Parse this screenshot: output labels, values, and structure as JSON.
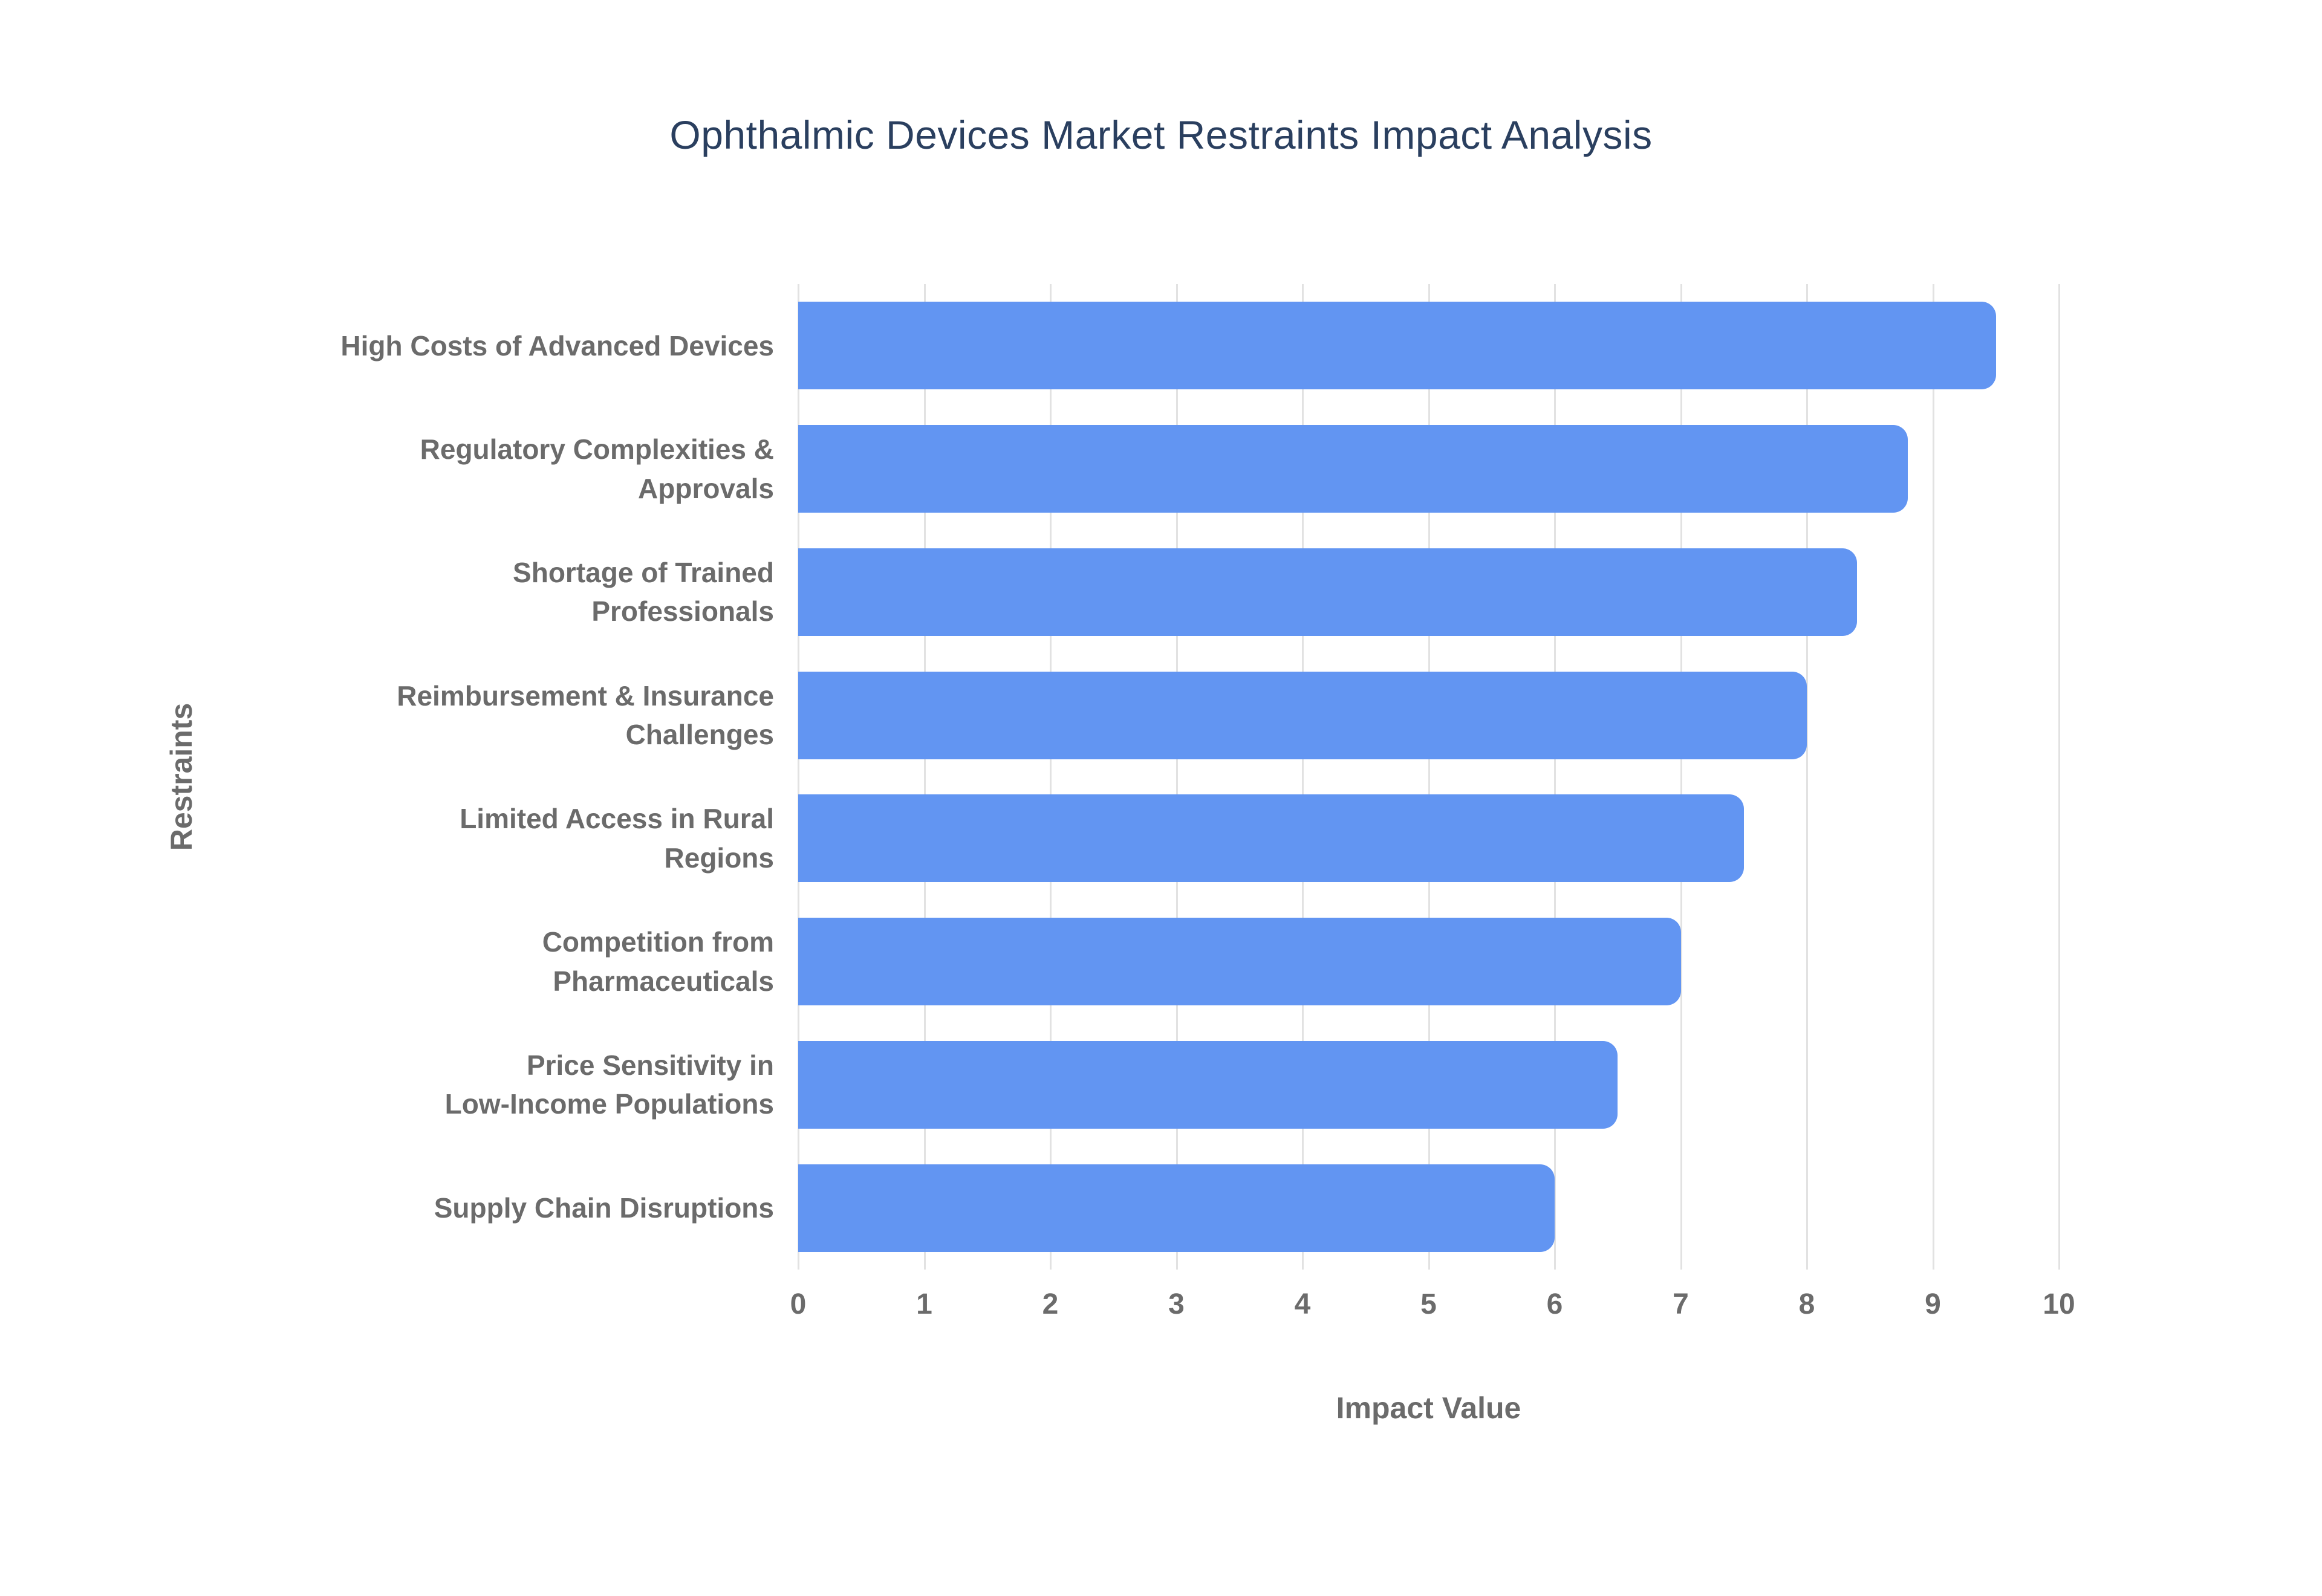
{
  "chart_data": {
    "type": "bar",
    "orientation": "horizontal",
    "title": "Ophthalmic Devices Market Restraints Impact Analysis",
    "xlabel": "Impact Value",
    "ylabel": "Restraints",
    "categories": [
      "High Costs of Advanced Devices",
      "Regulatory Complexities & Approvals",
      "Shortage of Trained Professionals",
      "Reimbursement & Insurance Challenges",
      "Limited Access in Rural Regions",
      "Competition from Pharmaceuticals",
      "Price Sensitivity in Low-Income Populations",
      "Supply Chain Disruptions"
    ],
    "category_label_lines": [
      [
        "High Costs of Advanced Devices"
      ],
      [
        "Regulatory Complexities &",
        "Approvals"
      ],
      [
        "Shortage of Trained",
        "Professionals"
      ],
      [
        "Reimbursement & Insurance",
        "Challenges"
      ],
      [
        "Limited Access in Rural",
        "Regions"
      ],
      [
        "Competition from",
        "Pharmaceuticals"
      ],
      [
        "Price Sensitivity in",
        "Low-Income Populations"
      ],
      [
        "Supply Chain Disruptions"
      ]
    ],
    "values": [
      9.5,
      8.8,
      8.4,
      8.0,
      7.5,
      7.0,
      6.5,
      6.0
    ],
    "xlim": [
      0,
      10
    ],
    "xticks": [
      0,
      1,
      2,
      3,
      4,
      5,
      6,
      7,
      8,
      9,
      10
    ],
    "grid": "vertical",
    "legend": "none",
    "colors": {
      "bar": "#6295f2",
      "title": "#2a3f5f",
      "axis_label": "#6b6b6b",
      "tick_label": "#6b6b6b",
      "gridline": "#e2e2e2",
      "background": "#ffffff"
    }
  }
}
